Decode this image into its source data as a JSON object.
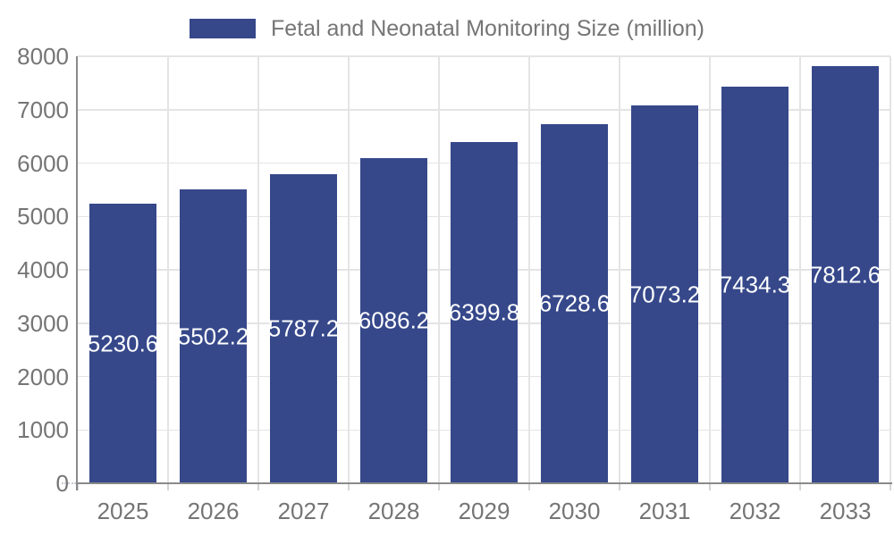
{
  "chart_data": {
    "type": "bar",
    "title": "Fetal and Neonatal Monitoring Size (million)",
    "legend_position": "top",
    "categories": [
      "2025",
      "2026",
      "2027",
      "2028",
      "2029",
      "2030",
      "2031",
      "2032",
      "2033"
    ],
    "values": [
      5230.6,
      5502.2,
      5787.2,
      6086.2,
      6399.8,
      6728.6,
      7073.2,
      7434.3,
      7812.6
    ],
    "series": [
      {
        "name": "Fetal and Neonatal Monitoring Size (million)",
        "values": [
          5230.6,
          5502.2,
          5787.2,
          6086.2,
          6399.8,
          6728.6,
          7073.2,
          7434.3,
          7812.6
        ]
      }
    ],
    "xlabel": "",
    "ylabel": "",
    "ylim": [
      0,
      8000
    ],
    "yticks": [
      0,
      1000,
      2000,
      3000,
      4000,
      5000,
      6000,
      7000,
      8000
    ],
    "grid": true,
    "bar_labels_visible": true,
    "colors": {
      "bar": "#36488A",
      "grid": "#e4e4e4",
      "axis": "#8a8a8a",
      "tick": "#d4d4d4",
      "text": "#757575",
      "bar_label": "#ffffff",
      "background": "#ffffff"
    }
  }
}
